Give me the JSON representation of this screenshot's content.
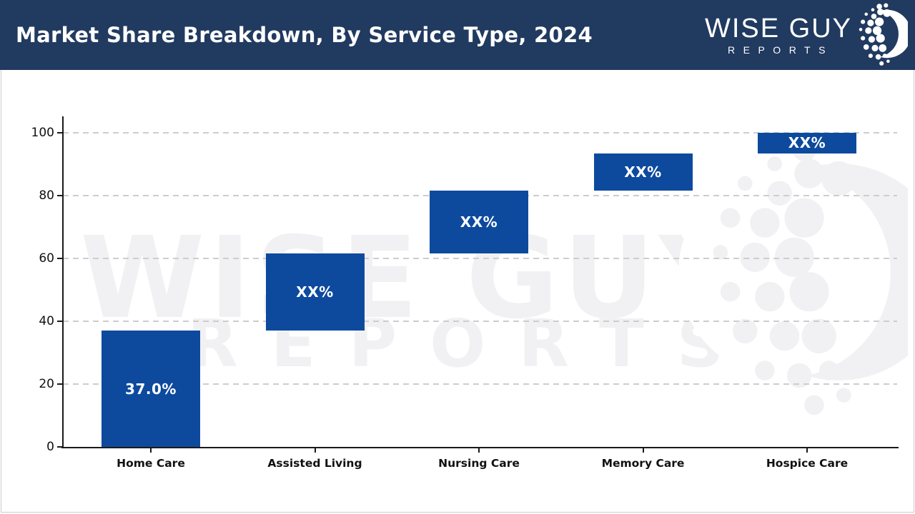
{
  "header": {
    "title": "Market Share Breakdown, By Service Type, 2024",
    "background": "#213a60",
    "logo": {
      "line1": "WISE GUY",
      "line2": "REPORTS"
    }
  },
  "watermark": {
    "line1": "WISE GUY",
    "line2": "REPORTS"
  },
  "chart_data": {
    "type": "bar",
    "subtype": "waterfall",
    "title": "Market Share Breakdown, By Service Type, 2024",
    "xlabel": "",
    "ylabel": "",
    "categories": [
      "Home Care",
      "Assisted Living",
      "Nursing Care",
      "Memory Care",
      "Hospice Care"
    ],
    "segments": [
      {
        "category": "Home Care",
        "start": 0,
        "end": 37,
        "label": "37.0%"
      },
      {
        "category": "Assisted Living",
        "start": 37,
        "end": 61.5,
        "label": "XX%"
      },
      {
        "category": "Nursing Care",
        "start": 61.5,
        "end": 81.5,
        "label": "XX%"
      },
      {
        "category": "Memory Care",
        "start": 81.5,
        "end": 93.5,
        "label": "XX%"
      },
      {
        "category": "Hospice Care",
        "start": 93.5,
        "end": 100,
        "label": "XX%"
      }
    ],
    "y_ticks": [
      0,
      20,
      40,
      60,
      80,
      100
    ],
    "ylim": [
      0,
      105
    ],
    "grid": "dashed horizontal",
    "legend": "none",
    "bar_color": "#0d4a9e",
    "bar_label_color": "#ffffff"
  },
  "colors": {
    "header_navy": "#213a60",
    "bar_blue": "#0d4a9e",
    "gridline": "#cdcdcd",
    "axis": "#1a1a1a",
    "watermark": "#f1f1f3",
    "frame_hairline": "#cccccc"
  }
}
